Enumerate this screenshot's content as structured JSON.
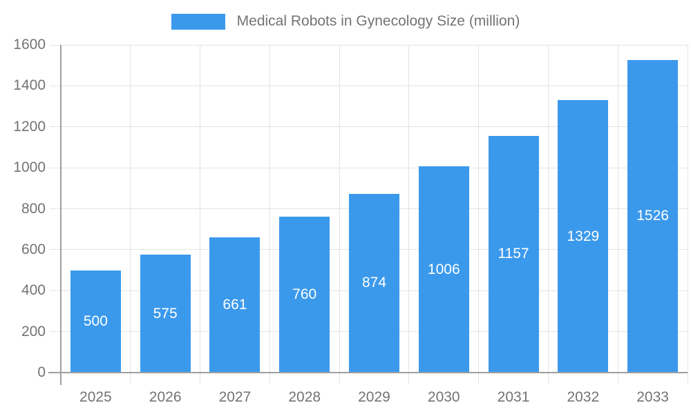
{
  "legend": {
    "label": "Medical Robots in Gynecology Size (million)"
  },
  "chart_data": {
    "type": "bar",
    "title": "Medical Robots in Gynecology Size (million)",
    "categories": [
      "2025",
      "2026",
      "2027",
      "2028",
      "2029",
      "2030",
      "2031",
      "2032",
      "2033"
    ],
    "series": [
      {
        "name": "Medical Robots in Gynecology Size (million)",
        "values": [
          500,
          575,
          661,
          760,
          874,
          1006,
          1157,
          1329,
          1526
        ]
      }
    ],
    "xlabel": "",
    "ylabel": "",
    "ylim": [
      0,
      1600
    ],
    "ytick_step": 200,
    "yticks": [
      0,
      200,
      400,
      600,
      800,
      1000,
      1200,
      1400,
      1600
    ],
    "grid": true,
    "legend_position": "top",
    "bar_labels_inside": true,
    "colors": {
      "bar": "#3b99ec",
      "grid": "#e3e3e3",
      "axis": "#9e9e9e",
      "text": "#737373",
      "bar_label": "#ffffff"
    }
  }
}
